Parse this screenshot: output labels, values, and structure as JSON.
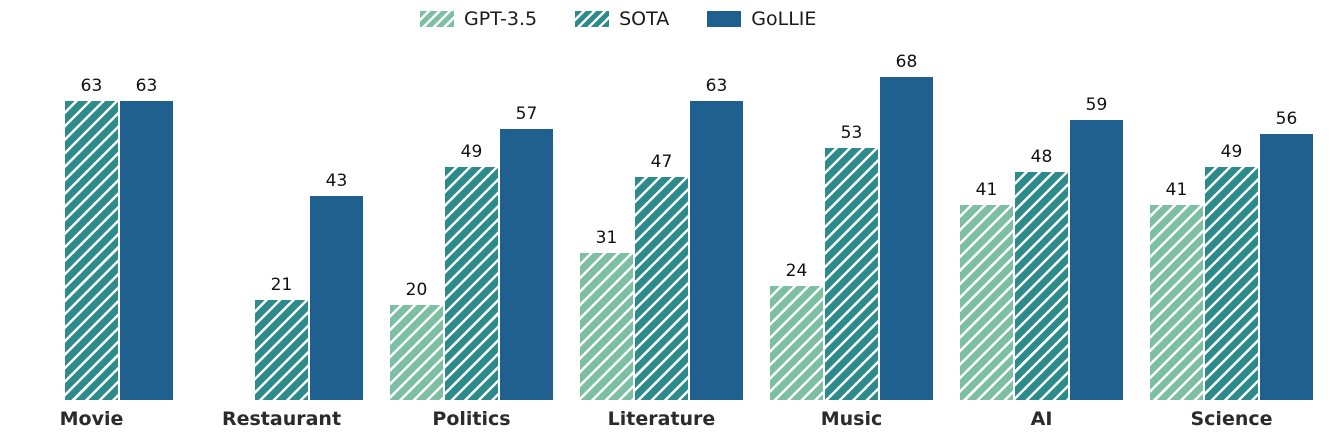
{
  "chart_data": {
    "type": "bar",
    "title": "",
    "xlabel": "",
    "ylabel": "",
    "categories": [
      "Movie",
      "Restaurant",
      "Politics",
      "Literature",
      "Music",
      "AI",
      "Science"
    ],
    "series": [
      {
        "name": "GPT-3.5",
        "color": "#7dbfa2",
        "hatch": true,
        "values": [
          null,
          null,
          20,
          31,
          24,
          41,
          41
        ]
      },
      {
        "name": "SOTA",
        "color": "#2e8b8b",
        "hatch": true,
        "values": [
          63,
          21,
          49,
          47,
          53,
          48,
          49
        ]
      },
      {
        "name": "GoLLIE",
        "color": "#1f608f",
        "hatch": false,
        "values": [
          63,
          43,
          57,
          63,
          68,
          59,
          56
        ]
      }
    ],
    "ylim": [
      0,
      72
    ],
    "grid": false,
    "legend_position": "top-center",
    "value_labels_shown": true,
    "axes_shown": false
  }
}
